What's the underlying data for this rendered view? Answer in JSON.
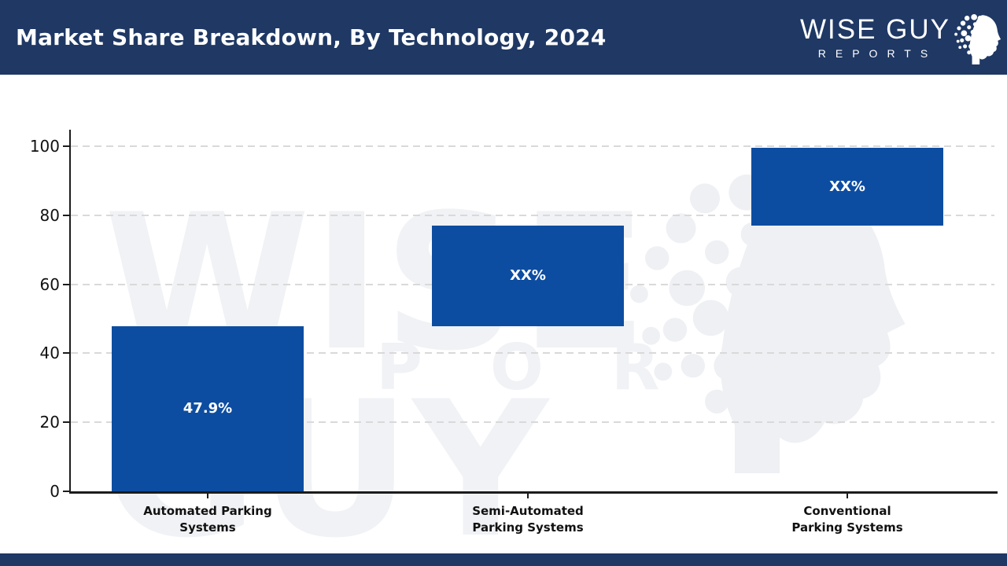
{
  "header": {
    "title": "Market Share Breakdown, By Technology, 2024",
    "bg_color": "#1f3864",
    "logo": {
      "line1": "WISE GUY",
      "line2": "REPORTS"
    }
  },
  "watermark": {
    "line1": "WISE GUY",
    "line2": "REPORTS"
  },
  "chart_data": {
    "type": "bar",
    "subtype": "waterfall",
    "title": "Market Share Breakdown, By Technology, 2024",
    "categories": [
      "Automated Parking\nSystems",
      "Semi-Automated\nParking Systems",
      "Conventional\nParking Systems"
    ],
    "series": [
      {
        "name": "Market Share (%)",
        "segments": [
          {
            "start": 0,
            "end": 47.9,
            "label": "47.9%"
          },
          {
            "start": 47.9,
            "end": 77.1,
            "label": "XX%"
          },
          {
            "start": 77.1,
            "end": 99.5,
            "label": "XX%"
          }
        ]
      }
    ],
    "xlabel": "",
    "ylabel": "",
    "ylim": [
      0,
      100
    ],
    "yticks": [
      0,
      20,
      40,
      60,
      80,
      100
    ],
    "grid": "horizontal-dashed",
    "legend": "none",
    "bar_color": "#0d4da1",
    "bar_label_color": "#ffffff",
    "gridline_color": "#d9d9d9",
    "axis_color": "#1c1c1c"
  }
}
